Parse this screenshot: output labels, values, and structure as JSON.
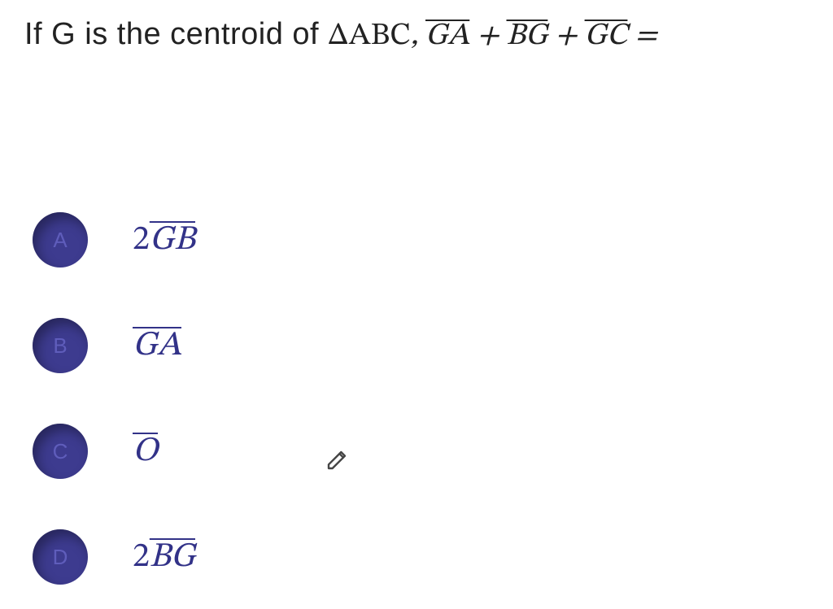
{
  "question": {
    "prefix": "If G is the centroid of ",
    "triangle": "ΔABC",
    "term1": "GA",
    "term2": "BG",
    "term3": "GC",
    "plus": " + ",
    "equals": " =",
    "comma": ", ",
    "text_color": "#222222"
  },
  "options": [
    {
      "letter": "A",
      "coef": "2",
      "vec": "GB"
    },
    {
      "letter": "B",
      "coef": "",
      "vec": "GA"
    },
    {
      "letter": "C",
      "coef": "",
      "vec": "O"
    },
    {
      "letter": "D",
      "coef": "2",
      "vec": "BG"
    }
  ],
  "styles": {
    "bubble_fill": "#3d3b8f",
    "bubble_inner_shadow": "rgba(0,0,0,0.35)",
    "bubble_letter_color": "#5f5dbb",
    "option_text_color": "#323288",
    "pencil_color": "#444444",
    "question_fontsize": 38,
    "option_fontsize": 42,
    "bubble_diameter": 68
  }
}
